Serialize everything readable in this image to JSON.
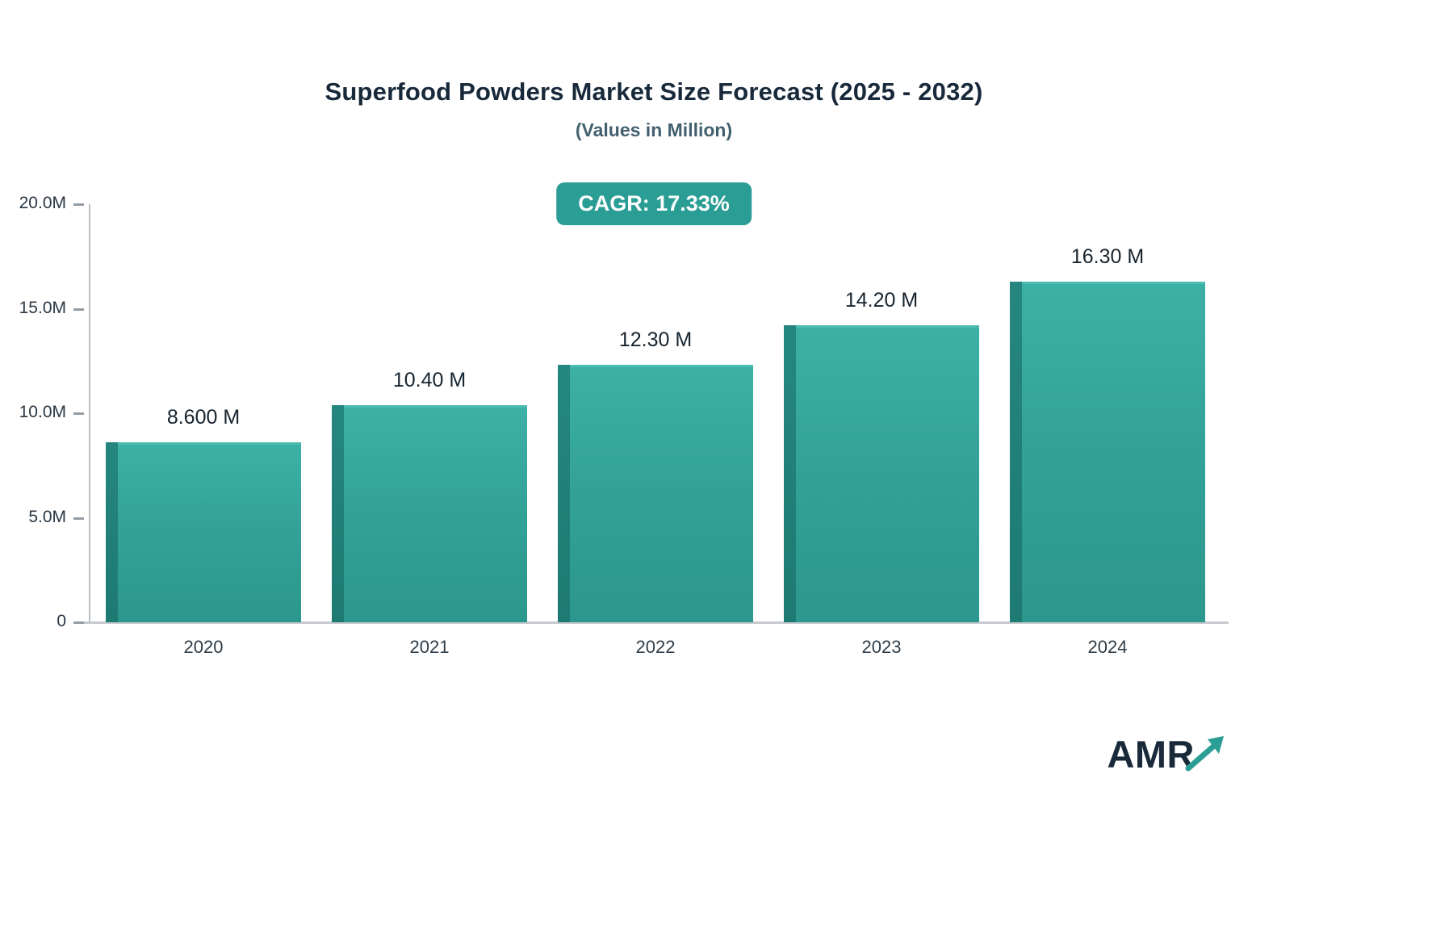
{
  "header": {
    "title": "Superfood Powders Market Size Forecast (2025 - 2032)",
    "subtitle": "(Values in Million)"
  },
  "badge": {
    "label": "CAGR: 17.33%",
    "background": "#2a9d94",
    "text_color": "#ffffff"
  },
  "chart_data": {
    "type": "bar",
    "title": "Superfood Powders Market Size Forecast (2025 - 2032)",
    "subtitle": "(Values in Million)",
    "categories": [
      "2020",
      "2021",
      "2022",
      "2023",
      "2024"
    ],
    "values": [
      8.6,
      10.4,
      12.3,
      14.2,
      16.3
    ],
    "value_labels": [
      "8.600 M",
      "10.40 M",
      "12.30 M",
      "14.20 M",
      "16.30 M"
    ],
    "xlabel": "",
    "ylabel": "",
    "ylim": [
      0,
      20
    ],
    "y_ticks": [
      {
        "label": "20.0M",
        "value": 20
      },
      {
        "label": "15.0M",
        "value": 15
      },
      {
        "label": "10.0M",
        "value": 10
      },
      {
        "label": "5.0M",
        "value": 5
      },
      {
        "label": "0",
        "value": 0
      }
    ],
    "grid": false,
    "legend": false,
    "bar_color": "#31a096",
    "bar_side_color": "#1e7a73"
  },
  "logo": {
    "text": "AMR",
    "arrow_color": "#2a9d94"
  }
}
